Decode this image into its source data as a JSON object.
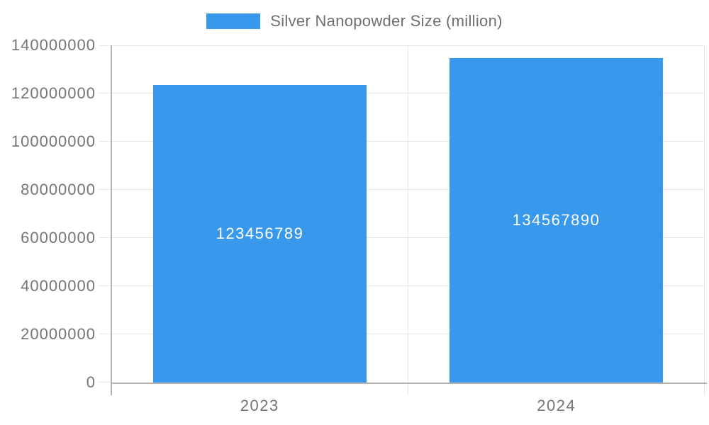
{
  "chart_data": {
    "type": "bar",
    "title": "",
    "legend": {
      "position": "top",
      "label": "Silver Nanopowder Size (million)"
    },
    "categories": [
      "2023",
      "2024"
    ],
    "series": [
      {
        "name": "Silver Nanopowder Size (million)",
        "values": [
          123456789,
          134567890
        ],
        "data_labels": [
          "123456789",
          "134567890"
        ]
      }
    ],
    "xlabel": "",
    "ylabel": "",
    "ylim": [
      0,
      140000000
    ],
    "ytick_step": 20000000,
    "yticks": [
      "0",
      "20000000",
      "40000000",
      "60000000",
      "80000000",
      "100000000",
      "120000000",
      "140000000"
    ],
    "grid": true,
    "colors": {
      "bar": "#3898ec",
      "grid_line": "#e6e6e6",
      "axis_line": "#b3b3b3",
      "axis_text": "#757575",
      "legend_text": "#6e6e6e",
      "data_label_text": "#ffffff",
      "background": "#ffffff"
    }
  }
}
